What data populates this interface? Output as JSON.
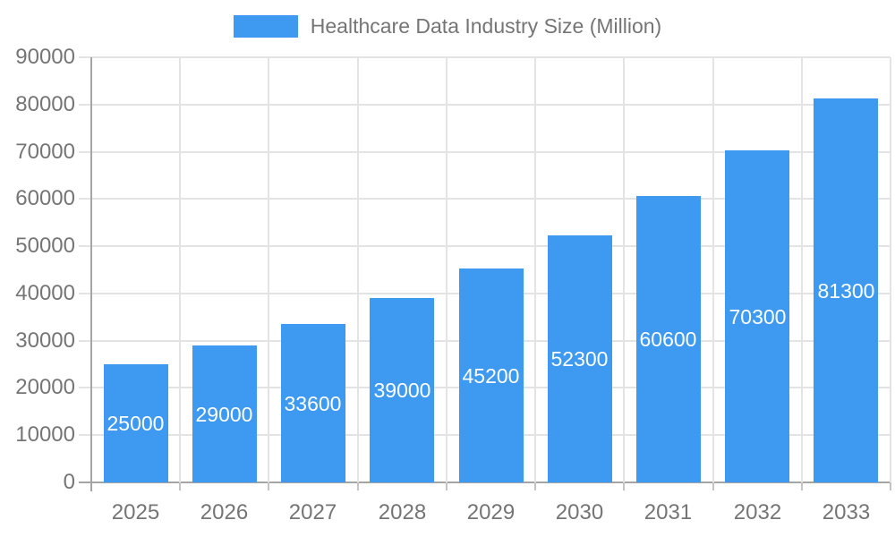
{
  "chart_data": {
    "type": "bar",
    "title": "Healthcare Data Industry Size (Million)",
    "legend_position": "top",
    "categories": [
      "2025",
      "2026",
      "2027",
      "2028",
      "2029",
      "2030",
      "2031",
      "2032",
      "2033"
    ],
    "values": [
      25000,
      29000,
      33600,
      39000,
      45200,
      52300,
      60600,
      70300,
      81300
    ],
    "bar_labels": [
      "25000",
      "29000",
      "33600",
      "39000",
      "45200",
      "52300",
      "60600",
      "70300",
      "81300"
    ],
    "y_ticks": [
      0,
      10000,
      20000,
      30000,
      40000,
      50000,
      60000,
      70000,
      80000,
      90000
    ],
    "y_tick_labels": [
      "0",
      "10000",
      "20000",
      "30000",
      "40000",
      "50000",
      "60000",
      "70000",
      "80000",
      "90000"
    ],
    "ylim": [
      0,
      90000
    ],
    "xlabel": "",
    "ylabel": "",
    "grid": true,
    "colors": {
      "bar": "#3D9AF0",
      "axis_text": "#757575",
      "bar_label_text": "#ffffff",
      "gridline": "#e3e3e3",
      "axis_line": "#a5a5a5",
      "background": "#ffffff"
    }
  }
}
